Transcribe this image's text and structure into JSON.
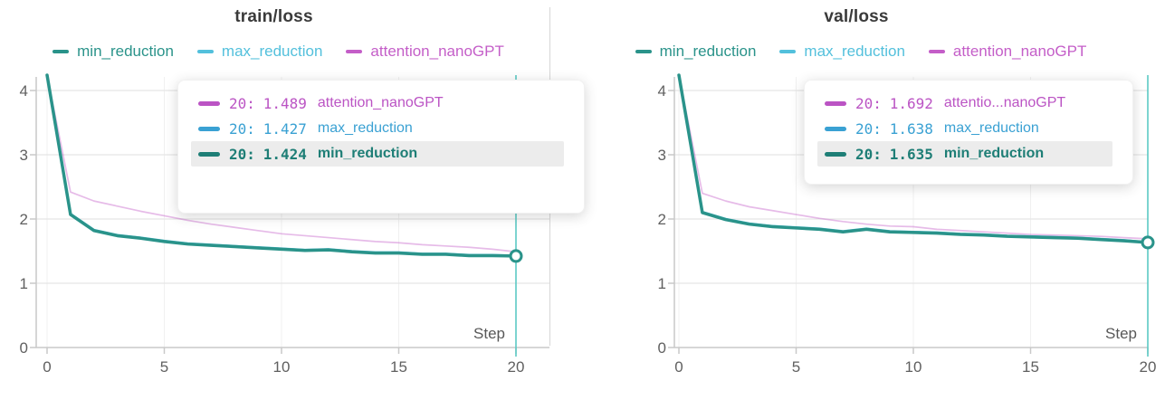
{
  "colors": {
    "cursor_line": "#5bc9c4",
    "tooltip_highlight_bg": "#ececec",
    "min_reduction": "#2a938a",
    "max_reduction": "#53c0dc",
    "attention_nanoGPT": "#c45ec8"
  },
  "charts": [
    {
      "title": "train/loss",
      "legend": [
        {
          "label": "min_reduction",
          "color": "#2a938a"
        },
        {
          "label": "max_reduction",
          "color": "#53c0dc"
        },
        {
          "label": "attention_nanoGPT",
          "color": "#c45ec8"
        }
      ],
      "tooltip": {
        "rows": [
          {
            "step_label": "20:",
            "value": "1.489",
            "name": "attention_nanoGPT",
            "color": "#bb54c4"
          },
          {
            "step_label": "20:",
            "value": "1.427",
            "name": "max_reduction",
            "color": "#3aa1d3"
          },
          {
            "step_label": "20:",
            "value": "1.424",
            "name": "min_reduction",
            "color": "#1e7e76"
          }
        ]
      }
    },
    {
      "title": "val/loss",
      "legend": [
        {
          "label": "min_reduction",
          "color": "#2a938a"
        },
        {
          "label": "max_reduction",
          "color": "#53c0dc"
        },
        {
          "label": "attention_nanoGPT",
          "color": "#c45ec8"
        }
      ],
      "tooltip": {
        "rows": [
          {
            "step_label": "20:",
            "value": "1.692",
            "name": "attentio...nanoGPT",
            "color": "#bb54c4"
          },
          {
            "step_label": "20:",
            "value": "1.638",
            "name": "max_reduction",
            "color": "#3aa1d3"
          },
          {
            "step_label": "20:",
            "value": "1.635",
            "name": "min_reduction",
            "color": "#1e7e76"
          }
        ]
      }
    }
  ],
  "chart_data": [
    {
      "type": "line",
      "title": "train/loss",
      "xlabel": "Step",
      "ylabel": "",
      "x": [
        0,
        1,
        2,
        3,
        4,
        5,
        6,
        7,
        8,
        9,
        10,
        11,
        12,
        13,
        14,
        15,
        16,
        17,
        18,
        19,
        20
      ],
      "x_ticks": [
        0,
        5,
        10,
        15,
        20
      ],
      "y_ticks": [
        0,
        1,
        2,
        3,
        4
      ],
      "xlim": [
        0,
        21.4
      ],
      "ylim": [
        0,
        4.3
      ],
      "grid": true,
      "legend_position": "top",
      "cursor_step": 20,
      "series": [
        {
          "name": "min_reduction",
          "color": "#2a938a",
          "final": 1.424,
          "highlighted": true,
          "values": [
            4.24,
            2.07,
            1.82,
            1.74,
            1.7,
            1.65,
            1.61,
            1.59,
            1.57,
            1.55,
            1.53,
            1.51,
            1.52,
            1.49,
            1.47,
            1.47,
            1.45,
            1.45,
            1.43,
            1.43,
            1.424
          ]
        },
        {
          "name": "max_reduction",
          "color": "#53c0dc",
          "final": 1.427,
          "values": [
            4.24,
            2.08,
            1.83,
            1.75,
            1.71,
            1.66,
            1.62,
            1.6,
            1.58,
            1.56,
            1.54,
            1.52,
            1.53,
            1.5,
            1.48,
            1.48,
            1.46,
            1.46,
            1.44,
            1.44,
            1.427
          ]
        },
        {
          "name": "attention_nanoGPT",
          "color": "#c45ec8",
          "final": 1.489,
          "values": [
            4.24,
            2.42,
            2.28,
            2.2,
            2.12,
            2.05,
            1.98,
            1.92,
            1.87,
            1.82,
            1.77,
            1.74,
            1.71,
            1.68,
            1.65,
            1.63,
            1.6,
            1.58,
            1.56,
            1.53,
            1.489
          ]
        }
      ]
    },
    {
      "type": "line",
      "title": "val/loss",
      "xlabel": "Step",
      "ylabel": "",
      "x": [
        0,
        1,
        2,
        3,
        4,
        5,
        6,
        7,
        8,
        9,
        10,
        11,
        12,
        13,
        14,
        15,
        16,
        17,
        18,
        19,
        20
      ],
      "x_ticks": [
        0,
        5,
        10,
        15,
        20
      ],
      "y_ticks": [
        0,
        1,
        2,
        3,
        4
      ],
      "xlim": [
        0,
        20
      ],
      "ylim": [
        0,
        4.3
      ],
      "grid": true,
      "legend_position": "top",
      "cursor_step": 20,
      "series": [
        {
          "name": "min_reduction",
          "color": "#2a938a",
          "final": 1.635,
          "highlighted": true,
          "values": [
            4.24,
            2.1,
            1.99,
            1.92,
            1.88,
            1.86,
            1.84,
            1.8,
            1.84,
            1.8,
            1.79,
            1.78,
            1.76,
            1.75,
            1.73,
            1.72,
            1.71,
            1.7,
            1.68,
            1.66,
            1.635
          ]
        },
        {
          "name": "max_reduction",
          "color": "#53c0dc",
          "final": 1.638,
          "values": [
            4.24,
            2.11,
            2.0,
            1.93,
            1.89,
            1.87,
            1.85,
            1.81,
            1.85,
            1.81,
            1.8,
            1.79,
            1.77,
            1.76,
            1.74,
            1.73,
            1.72,
            1.71,
            1.69,
            1.67,
            1.638
          ]
        },
        {
          "name": "attention_nanoGPT",
          "color": "#c45ec8",
          "final": 1.692,
          "values": [
            4.24,
            2.4,
            2.28,
            2.19,
            2.13,
            2.07,
            2.01,
            1.96,
            1.92,
            1.89,
            1.88,
            1.84,
            1.82,
            1.8,
            1.78,
            1.76,
            1.75,
            1.74,
            1.73,
            1.71,
            1.692
          ]
        }
      ]
    }
  ]
}
